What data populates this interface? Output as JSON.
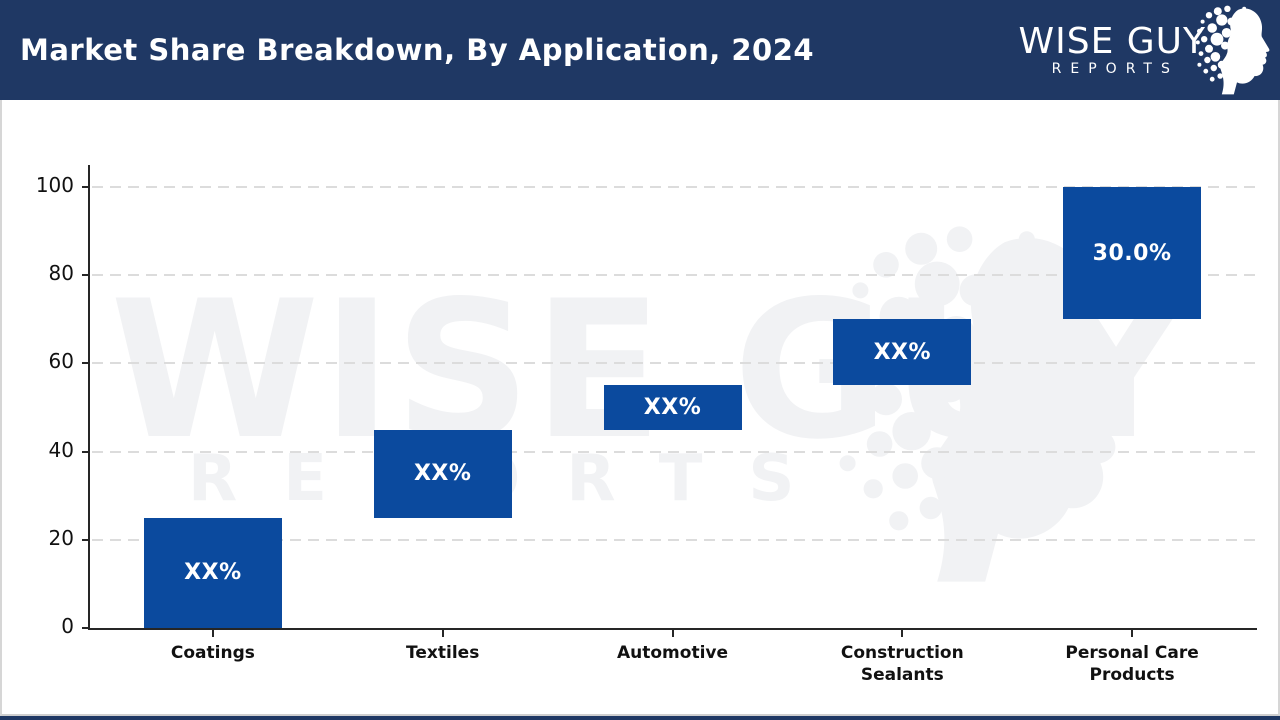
{
  "header": {
    "title": "Market Share Breakdown, By Application, 2024",
    "logo": {
      "brand": "WISE GUY",
      "sub": "REPORTS"
    }
  },
  "watermark": {
    "brand": "WISE GUY",
    "sub": "REPORTS"
  },
  "colors": {
    "header_bg": "#1f3864",
    "bar": "#0b4a9e",
    "bar_label_text": "#ffffff",
    "axis": "#262626",
    "grid": "#dcdcdc",
    "tick_text": "#111111",
    "title_text": "#ffffff",
    "watermark_tint": "#f1f2f4"
  },
  "chart_data": {
    "type": "bar",
    "subtype": "floating-waterfall",
    "title": "Market Share Breakdown, By Application, 2024",
    "categories": [
      "Coatings",
      "Textiles",
      "Automotive",
      "Construction Sealants",
      "Personal Care Products"
    ],
    "tick_labels": [
      "Coatings",
      "Textiles",
      "Automotive",
      "Construction\nSealants",
      "Personal Care\nProducts"
    ],
    "segments": [
      {
        "category": "Coatings",
        "start": 0,
        "end": 25,
        "label": "XX%"
      },
      {
        "category": "Textiles",
        "start": 25,
        "end": 45,
        "label": "XX%"
      },
      {
        "category": "Automotive",
        "start": 45,
        "end": 55,
        "label": "XX%"
      },
      {
        "category": "Construction Sealants",
        "start": 55,
        "end": 70,
        "label": "XX%"
      },
      {
        "category": "Personal Care Products",
        "start": 70,
        "end": 100,
        "label": "30.0%"
      }
    ],
    "xlabel": "",
    "ylabel": "",
    "ylim": [
      0,
      100
    ],
    "yticks": [
      0,
      20,
      40,
      60,
      80,
      100
    ],
    "grid": "horizontal-dashed",
    "legend": "none"
  }
}
